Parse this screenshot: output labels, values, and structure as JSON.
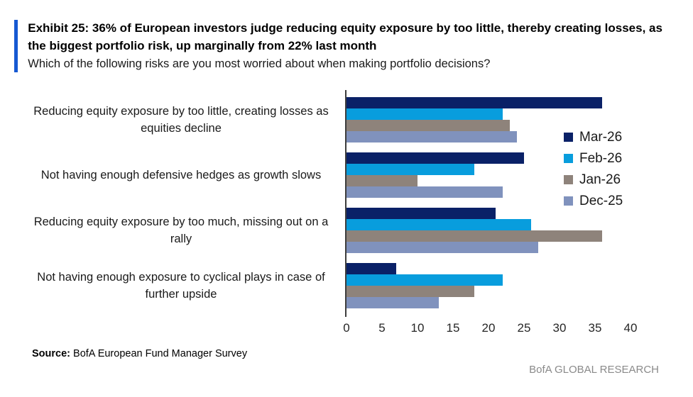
{
  "header": {
    "exhibit_title": "Exhibit 25: 36% of European investors judge reducing equity exposure by too little, thereby creating losses, as the biggest portfolio risk, up marginally from 22% last month",
    "subtitle": "Which of the following risks are you most worried about when making portfolio decisions?"
  },
  "chart_data": {
    "type": "bar",
    "orientation": "horizontal",
    "title": "Which of the following risks are you most worried about when making portfolio decisions?",
    "categories": [
      "Reducing equity exposure by too little, creating losses as equities decline",
      "Not having enough defensive hedges as growth slows",
      "Reducing equity exposure by too much, missing out on a rally",
      "Not having enough exposure to cyclical plays in case of further upside"
    ],
    "series": [
      {
        "name": "Mar-26",
        "color": "#0a2167",
        "values": [
          36,
          25,
          21,
          7
        ]
      },
      {
        "name": "Feb-26",
        "color": "#089ddd",
        "values": [
          22,
          18,
          26,
          22
        ]
      },
      {
        "name": "Jan-26",
        "color": "#8e837b",
        "values": [
          23,
          10,
          36,
          18
        ]
      },
      {
        "name": "Dec-25",
        "color": "#8092bd",
        "values": [
          24,
          22,
          27,
          13
        ]
      }
    ],
    "xlim": [
      0,
      40
    ],
    "xticks": [
      0,
      5,
      10,
      15,
      20,
      25,
      30,
      35,
      40
    ],
    "unit": "percent",
    "grid": false,
    "legend_position": "upper-right-inside"
  },
  "footer": {
    "source_label": "Source:",
    "source_text": " BofA European Fund Manager Survey",
    "brand": "BofA GLOBAL RESEARCH"
  },
  "colors": {
    "accent_bar": "#1659d2",
    "axis_line": "#3d3d3d",
    "background": "#ffffff"
  }
}
